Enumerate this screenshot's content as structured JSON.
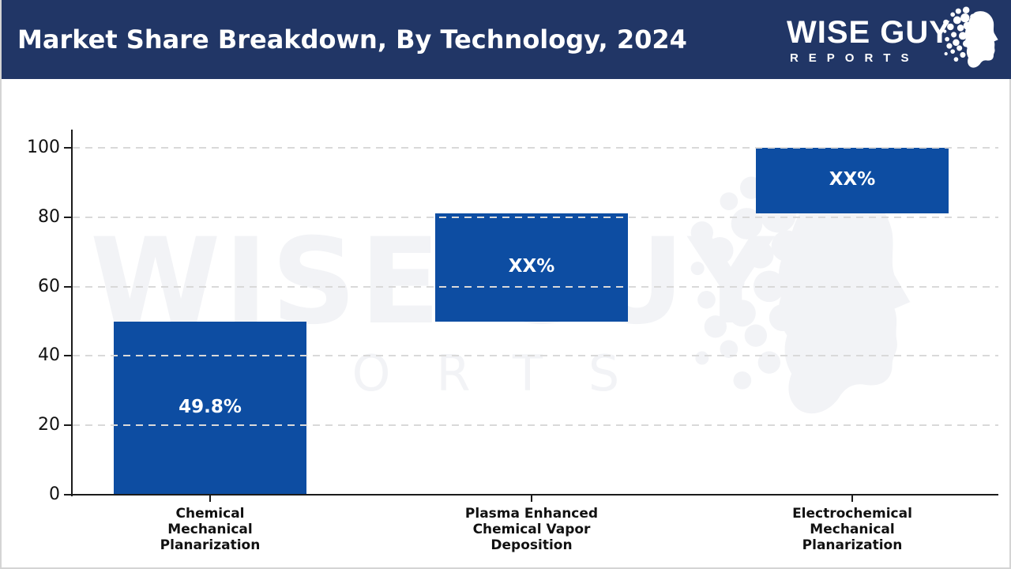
{
  "header": {
    "title": "Market Share Breakdown, By Technology, 2024",
    "logo": {
      "name": "WISE GUY",
      "sub": "REPORTS"
    }
  },
  "watermark": {
    "name": "WISE GUY",
    "sub": "REPORTS"
  },
  "chart_data": {
    "type": "bar",
    "subtype": "waterfall",
    "title": "Market Share Breakdown, By Technology, 2024",
    "categories": [
      [
        "Chemical",
        "Mechanical",
        "Planarization"
      ],
      [
        "Plasma Enhanced",
        "Chemical Vapor",
        "Deposition"
      ],
      [
        "Electrochemical",
        "Mechanical",
        "Planarization"
      ]
    ],
    "segments": [
      {
        "start": 0,
        "end": 49.8,
        "label": "49.8%"
      },
      {
        "start": 49.8,
        "end": 81.0,
        "label": "XX%"
      },
      {
        "start": 81.0,
        "end": 100.0,
        "label": "XX%"
      }
    ],
    "yticks": [
      0,
      20,
      40,
      60,
      80,
      100
    ],
    "ylim": [
      0,
      100
    ],
    "grid": "horizontal-dashed",
    "legend": "none",
    "xlabel": "",
    "ylabel": "",
    "colors": {
      "bar": "#0d4da2",
      "bar_label": "#ffffff",
      "grid": "#d9d9d9",
      "axis": "#1b1b1b",
      "header_bg": "#213666",
      "watermark": "#f2f3f6"
    }
  }
}
